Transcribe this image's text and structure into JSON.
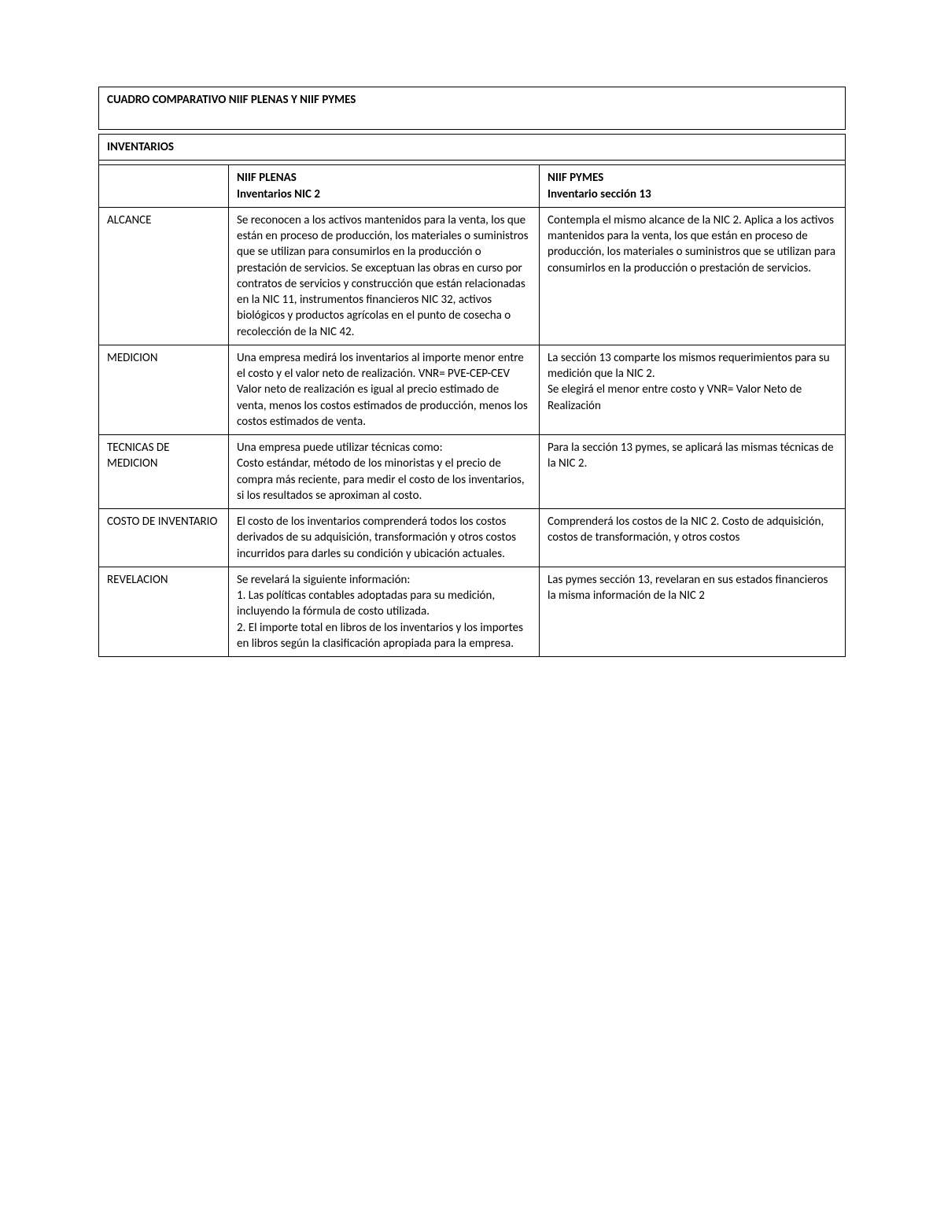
{
  "title": "CUADRO COMPARATIVO NIIF PLENAS Y NIIF PYMES",
  "section": "INVENTARIOS",
  "headers": {
    "empty": "",
    "plenas_title": "NIIF PLENAS",
    "plenas_sub": " Inventarios NIC 2",
    "pymes_title": "NIIF PYMES",
    "pymes_sub": "Inventario sección 13"
  },
  "rows": [
    {
      "label": "ALCANCE",
      "plenas": "Se reconocen a los activos mantenidos para la venta, los que están en proceso de producción, los materiales o suministros que se utilizan para consumirlos en la producción o prestación de servicios. Se exceptuan las obras en curso por contratos de servicios y construcción que están relacionadas en la NIC 11, instrumentos financieros NIC 32, activos biológicos y productos agrícolas en el punto de cosecha o recolección de la NIC 42.",
      "pymes": "Contempla el mismo alcance de la NIC 2. Aplica a los activos mantenidos para la venta, los que están en proceso de producción, los materiales o suministros que se utilizan para consumirlos en la producción o prestación de servicios."
    },
    {
      "label": "MEDICION",
      "plenas": "Una empresa medirá los inventarios al importe menor entre el costo y el valor neto de realización. VNR= PVE-CEP-CEV Valor neto de realización es igual al precio estimado de venta, menos los costos estimados de producción, menos los costos estimados de venta.",
      "pymes": "La sección 13 comparte los mismos requerimientos para su medición que la NIC 2.\nSe elegirá el menor entre costo y VNR= Valor Neto de Realización"
    },
    {
      "label": "TECNICAS DE MEDICION",
      "plenas": "Una empresa puede utilizar técnicas como:\nCosto estándar, método de los minoristas y el precio de compra más reciente, para medir el costo de los inventarios, si los resultados se aproximan al costo.",
      "pymes": "Para la sección 13 pymes, se aplicará las mismas técnicas de la NIC 2."
    },
    {
      "label": "COSTO DE INVENTARIO",
      "plenas": "El costo de los inventarios comprenderá todos los costos derivados de su adquisición, transformación y otros costos incurridos para darles su condición y ubicación actuales.",
      "pymes": "Comprenderá los costos de la NIC 2. Costo de adquisición, costos de transformación, y otros costos"
    },
    {
      "label": "REVELACION",
      "plenas": "Se revelará la siguiente información:\n1. Las políticas contables adoptadas para su medición, incluyendo la fórmula de costo utilizada.\n2. El importe total en libros de los inventarios y los importes en libros según la clasificación apropiada para la empresa.",
      "pymes": "Las pymes sección 13, revelaran en sus estados financieros la misma información de la NIC 2"
    }
  ]
}
